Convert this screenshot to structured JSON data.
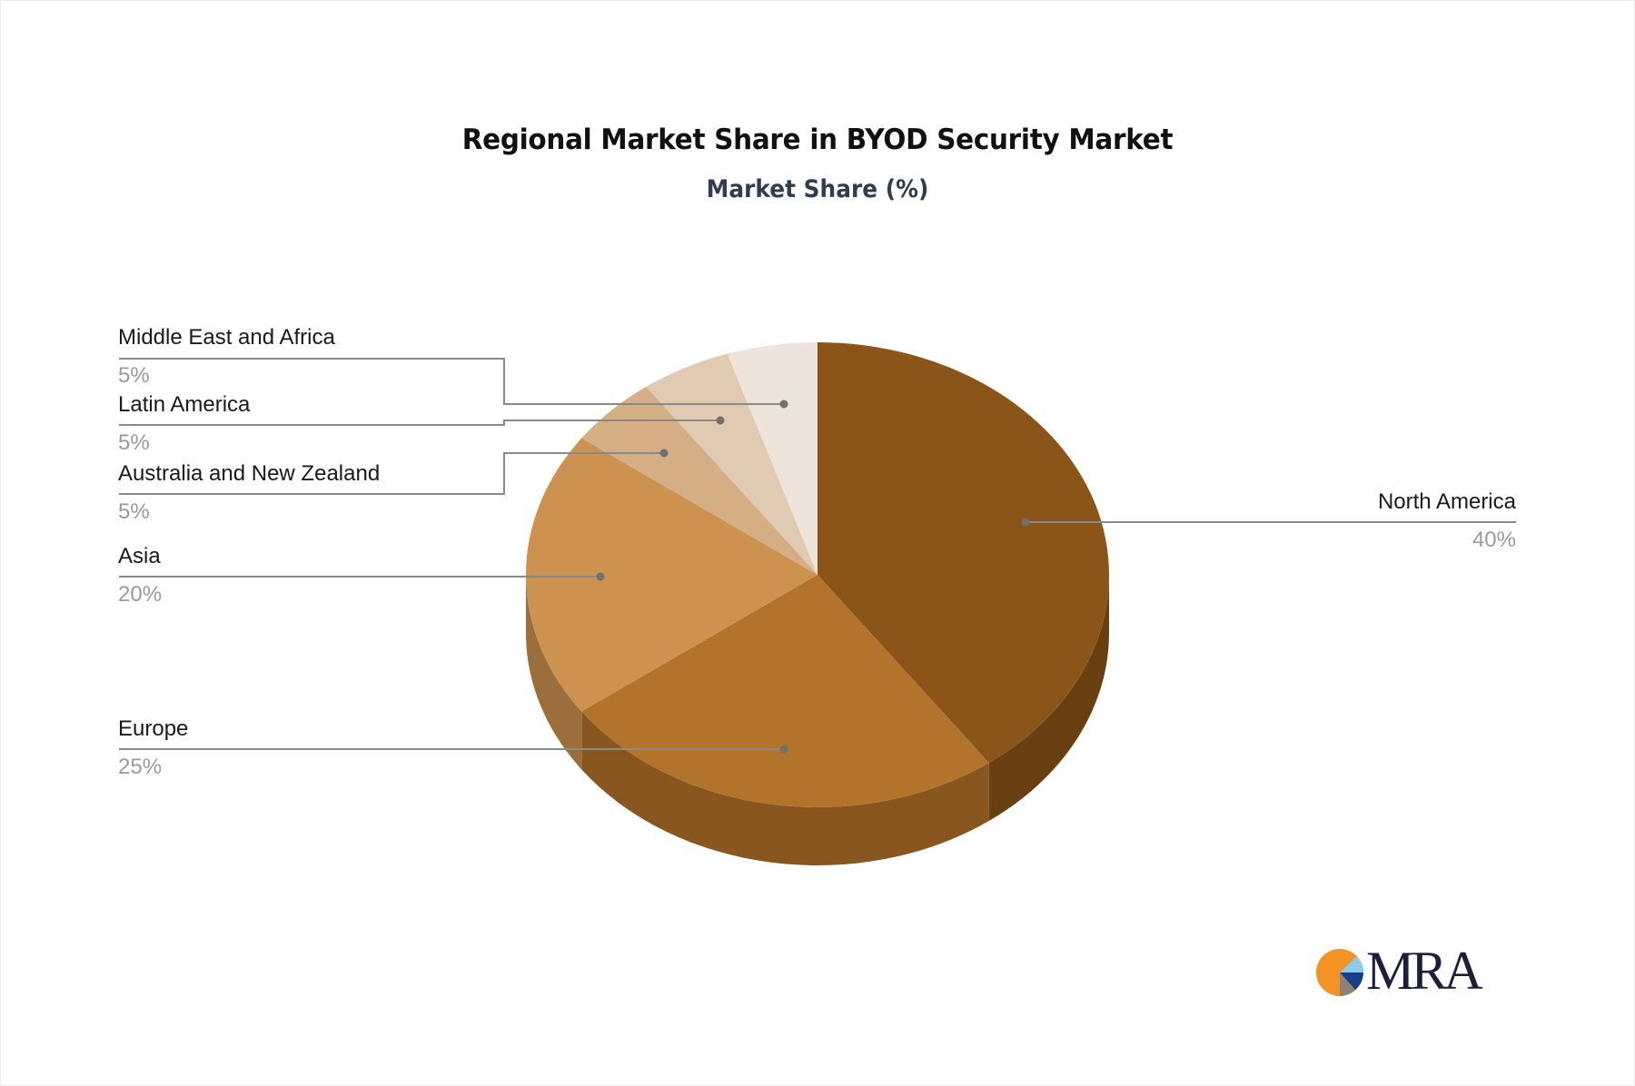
{
  "chart_data": {
    "type": "pie",
    "style": "3d",
    "title": "Regional Market Share in BYOD Security Market",
    "subtitle": "Market Share (%)",
    "unit": "%",
    "categories": [
      "North America",
      "Europe",
      "Asia",
      "Australia and New Zealand",
      "Latin America",
      "Middle East and Africa"
    ],
    "values": [
      40,
      25,
      20,
      5,
      5,
      5
    ],
    "labels": [
      "40%",
      "25%",
      "20%",
      "5%",
      "5%",
      "5%"
    ],
    "colors": [
      "#8b5519",
      "#b2742a",
      "#cd924f",
      "#d4ae84",
      "#e0cab1",
      "#ede4db"
    ],
    "side_colors": [
      "#683f11",
      "#8a5620",
      "#9c6e3c",
      "#a58660",
      "#b09b84",
      "#bcb3aa"
    ],
    "legend_position": "callouts"
  },
  "header": {
    "title": "Regional Market Share in BYOD Security Market",
    "subtitle": "Market Share (%)"
  },
  "callouts": {
    "north_america": {
      "label": "North America",
      "pct": "40%"
    },
    "europe": {
      "label": "Europe",
      "pct": "25%"
    },
    "asia": {
      "label": "Asia",
      "pct": "20%"
    },
    "anz": {
      "label": "Australia and New Zealand",
      "pct": "5%"
    },
    "latin_america": {
      "label": "Latin America",
      "pct": "5%"
    },
    "mea": {
      "label": "Middle East and Africa",
      "pct": "5%"
    }
  },
  "logo": {
    "text": "MRA",
    "colors": {
      "orange": "#f39325",
      "light_blue": "#8ec9ee",
      "navy": "#173e8a",
      "gray": "#8a8279",
      "text": "#1b1f3b"
    }
  }
}
